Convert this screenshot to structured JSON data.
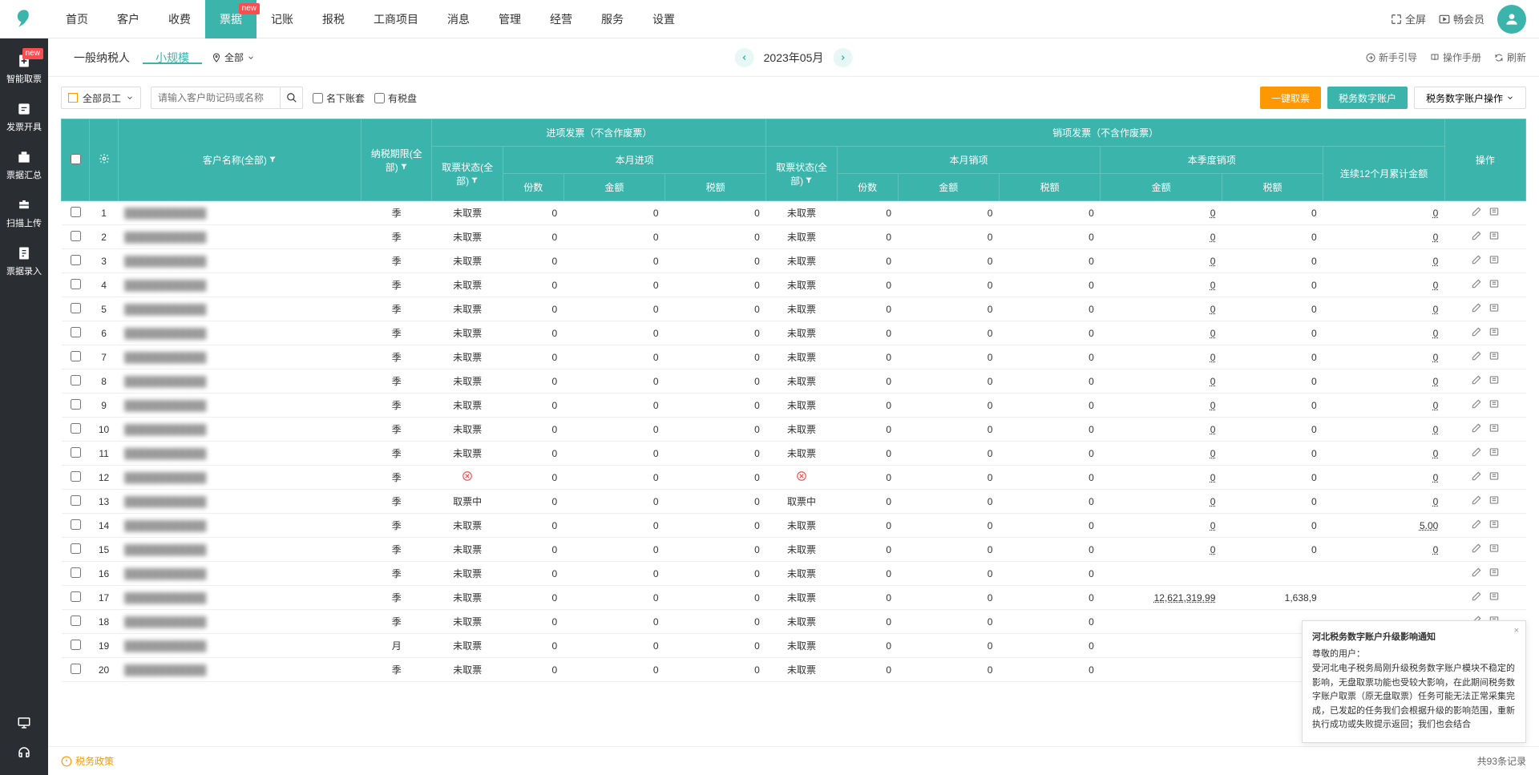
{
  "topnav": {
    "items": [
      "首页",
      "客户",
      "收费",
      "票据",
      "记账",
      "报税",
      "工商项目",
      "消息",
      "管理",
      "经营",
      "服务",
      "设置"
    ],
    "active": "票据",
    "new_badge": "new",
    "fullscreen": "全屏",
    "member": "畅会员"
  },
  "sidebar": {
    "items": [
      {
        "label": "智能取票",
        "badge": "new"
      },
      {
        "label": "发票开具"
      },
      {
        "label": "票据汇总"
      },
      {
        "label": "扫描上传"
      },
      {
        "label": "票据录入"
      }
    ]
  },
  "tabs": {
    "items": [
      "一般纳税人",
      "小规模"
    ],
    "active": "小规模",
    "region": "全部",
    "month": "2023年05月",
    "guide": "新手引导",
    "manual": "操作手册",
    "refresh": "刷新"
  },
  "filter": {
    "emp_label": "全部员工",
    "search_placeholder": "请输入客户助记码或名称",
    "checkbox1": "名下账套",
    "checkbox2": "有税盘",
    "btn_fetch": "一键取票",
    "btn_tax": "税务数字账户",
    "btn_ops": "税务数字账户操作"
  },
  "table": {
    "hdr_company": "客户名称(全部)",
    "hdr_period": "纳税期限(全部)",
    "hdr_income": "进项发票（不含作废票）",
    "hdr_output": "销项发票（不含作废票）",
    "hdr_fetch_state": "取票状态(全部)",
    "hdr_month_income": "本月进项",
    "hdr_month_output": "本月销项",
    "hdr_quarter_output": "本季度销项",
    "hdr_12m": "连续12个月累计金额",
    "hdr_count": "份数",
    "hdr_amount": "金额",
    "hdr_tax": "税额",
    "hdr_action": "操作",
    "rows": [
      {
        "n": 1,
        "period": "季",
        "s1": "未取票",
        "c1": 0,
        "a1": 0,
        "t1": 0,
        "s2": "未取票",
        "c2": 0,
        "a2": 0,
        "t2": 0,
        "qa": "0",
        "qt": 0,
        "y": "0"
      },
      {
        "n": 2,
        "period": "季",
        "s1": "未取票",
        "c1": 0,
        "a1": 0,
        "t1": 0,
        "s2": "未取票",
        "c2": 0,
        "a2": 0,
        "t2": 0,
        "qa": "0",
        "qt": 0,
        "y": "0"
      },
      {
        "n": 3,
        "period": "季",
        "s1": "未取票",
        "c1": 0,
        "a1": 0,
        "t1": 0,
        "s2": "未取票",
        "c2": 0,
        "a2": 0,
        "t2": 0,
        "qa": "0",
        "qt": 0,
        "y": "0"
      },
      {
        "n": 4,
        "period": "季",
        "s1": "未取票",
        "c1": 0,
        "a1": 0,
        "t1": 0,
        "s2": "未取票",
        "c2": 0,
        "a2": 0,
        "t2": 0,
        "qa": "0",
        "qt": 0,
        "y": "0"
      },
      {
        "n": 5,
        "period": "季",
        "s1": "未取票",
        "c1": 0,
        "a1": 0,
        "t1": 0,
        "s2": "未取票",
        "c2": 0,
        "a2": 0,
        "t2": 0,
        "qa": "0",
        "qt": 0,
        "y": "0"
      },
      {
        "n": 6,
        "period": "季",
        "s1": "未取票",
        "c1": 0,
        "a1": 0,
        "t1": 0,
        "s2": "未取票",
        "c2": 0,
        "a2": 0,
        "t2": 0,
        "qa": "0",
        "qt": 0,
        "y": "0"
      },
      {
        "n": 7,
        "period": "季",
        "s1": "未取票",
        "c1": 0,
        "a1": 0,
        "t1": 0,
        "s2": "未取票",
        "c2": 0,
        "a2": 0,
        "t2": 0,
        "qa": "0",
        "qt": 0,
        "y": "0"
      },
      {
        "n": 8,
        "period": "季",
        "s1": "未取票",
        "c1": 0,
        "a1": 0,
        "t1": 0,
        "s2": "未取票",
        "c2": 0,
        "a2": 0,
        "t2": 0,
        "qa": "0",
        "qt": 0,
        "y": "0"
      },
      {
        "n": 9,
        "period": "季",
        "s1": "未取票",
        "c1": 0,
        "a1": 0,
        "t1": 0,
        "s2": "未取票",
        "c2": 0,
        "a2": 0,
        "t2": 0,
        "qa": "0",
        "qt": 0,
        "y": "0"
      },
      {
        "n": 10,
        "period": "季",
        "s1": "未取票",
        "c1": 0,
        "a1": 0,
        "t1": 0,
        "s2": "未取票",
        "c2": 0,
        "a2": 0,
        "t2": 0,
        "qa": "0",
        "qt": 0,
        "y": "0"
      },
      {
        "n": 11,
        "period": "季",
        "s1": "未取票",
        "c1": 0,
        "a1": 0,
        "t1": 0,
        "s2": "未取票",
        "c2": 0,
        "a2": 0,
        "t2": 0,
        "qa": "0",
        "qt": 0,
        "y": "0"
      },
      {
        "n": 12,
        "period": "季",
        "s1": "ERR",
        "c1": 0,
        "a1": 0,
        "t1": 0,
        "s2": "ERR",
        "c2": 0,
        "a2": 0,
        "t2": 0,
        "qa": "0",
        "qt": 0,
        "y": "0"
      },
      {
        "n": 13,
        "period": "季",
        "s1": "取票中",
        "c1": 0,
        "a1": 0,
        "t1": 0,
        "s2": "取票中",
        "c2": 0,
        "a2": 0,
        "t2": 0,
        "qa": "0",
        "qt": 0,
        "y": "0"
      },
      {
        "n": 14,
        "period": "季",
        "s1": "未取票",
        "c1": 0,
        "a1": 0,
        "t1": 0,
        "s2": "未取票",
        "c2": 0,
        "a2": 0,
        "t2": 0,
        "qa": "0",
        "qt": 0,
        "y": "5.00"
      },
      {
        "n": 15,
        "period": "季",
        "s1": "未取票",
        "c1": 0,
        "a1": 0,
        "t1": 0,
        "s2": "未取票",
        "c2": 0,
        "a2": 0,
        "t2": 0,
        "qa": "0",
        "qt": 0,
        "y": "0"
      },
      {
        "n": 16,
        "period": "季",
        "s1": "未取票",
        "c1": 0,
        "a1": 0,
        "t1": 0,
        "s2": "未取票",
        "c2": 0,
        "a2": 0,
        "t2": 0,
        "qa": "",
        "qt": "",
        "y": ""
      },
      {
        "n": 17,
        "period": "季",
        "s1": "未取票",
        "c1": 0,
        "a1": 0,
        "t1": 0,
        "s2": "未取票",
        "c2": 0,
        "a2": 0,
        "t2": 0,
        "qa": "12,621,319.99",
        "qt": "1,638,9",
        "y": ""
      },
      {
        "n": 18,
        "period": "季",
        "s1": "未取票",
        "c1": 0,
        "a1": 0,
        "t1": 0,
        "s2": "未取票",
        "c2": 0,
        "a2": 0,
        "t2": 0,
        "qa": "",
        "qt": "",
        "y": ""
      },
      {
        "n": 19,
        "period": "月",
        "s1": "未取票",
        "c1": 0,
        "a1": 0,
        "t1": 0,
        "s2": "未取票",
        "c2": 0,
        "a2": 0,
        "t2": 0,
        "qa": "",
        "qt": "",
        "y": ""
      },
      {
        "n": 20,
        "period": "季",
        "s1": "未取票",
        "c1": 0,
        "a1": 0,
        "t1": 0,
        "s2": "未取票",
        "c2": 0,
        "a2": 0,
        "t2": 0,
        "qa": "",
        "qt": "",
        "y": ""
      }
    ]
  },
  "footer": {
    "policy": "税务政策",
    "total": "共93条记录"
  },
  "notif": {
    "title": "河北税务数字账户升级影响通知",
    "greet": "尊敬的用户：",
    "body": "受河北电子税务局刚升级税务数字账户模块不稳定的影响，无盘取票功能也受较大影响，在此期间税务数字账户取票（原无盘取票）任务可能无法正常采集完成，已发起的任务我们会根据升级的影响范围，重新执行成功或失败提示返回；我们也会结合"
  },
  "colors": {
    "teal": "#3bb5ac",
    "orange": "#ff9800",
    "dark": "#2a2e33",
    "red": "#ff4d4f"
  }
}
